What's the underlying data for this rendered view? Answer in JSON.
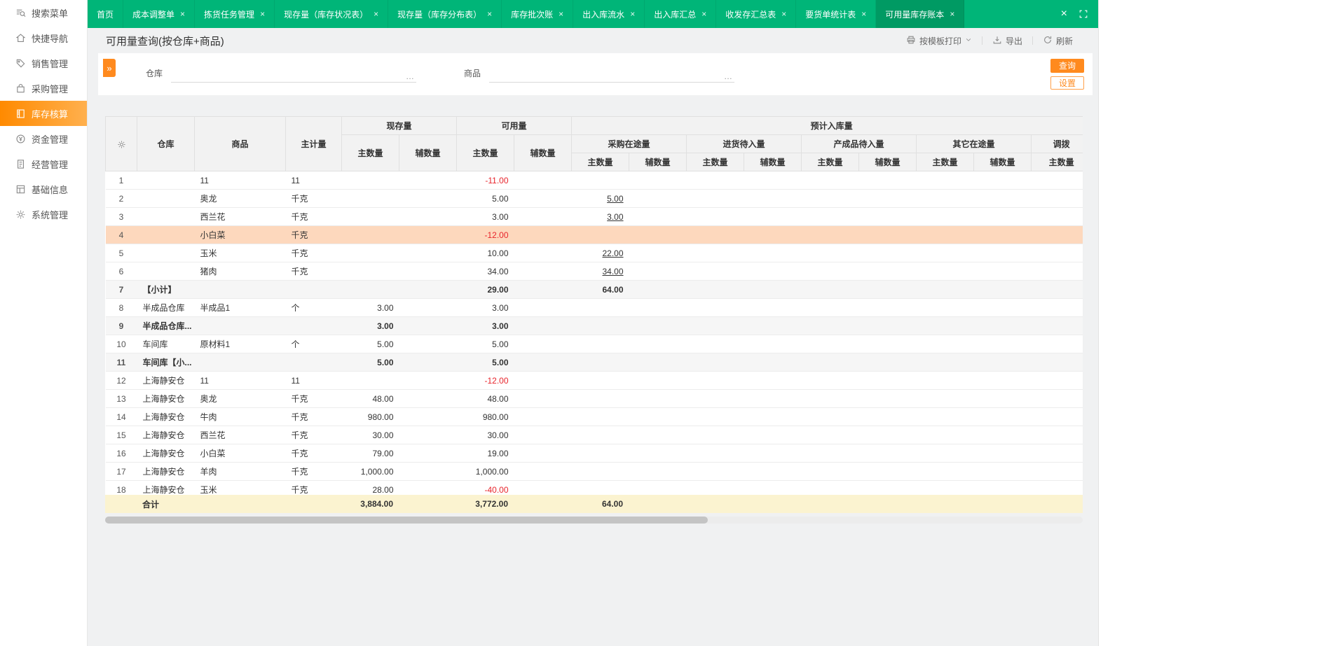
{
  "icons": {
    "close": "×",
    "window_close": "×",
    "picker": "…",
    "expand": "»"
  },
  "tabs": [
    {
      "label": "首页",
      "closable": false
    },
    {
      "label": "成本调整单",
      "closable": true
    },
    {
      "label": "拣货任务管理",
      "closable": true
    },
    {
      "label": "现存量（库存状况表）",
      "closable": true
    },
    {
      "label": "现存量（库存分布表）",
      "closable": true
    },
    {
      "label": "库存批次账",
      "closable": true
    },
    {
      "label": "出入库流水",
      "closable": true
    },
    {
      "label": "出入库汇总",
      "closable": true
    },
    {
      "label": "收发存汇总表",
      "closable": true
    },
    {
      "label": "要货单统计表",
      "closable": true
    },
    {
      "label": "可用量库存账本",
      "closable": true,
      "active": true
    }
  ],
  "sidebar": [
    {
      "label": "搜索菜单"
    },
    {
      "label": "快捷导航"
    },
    {
      "label": "销售管理"
    },
    {
      "label": "采购管理"
    },
    {
      "label": "库存核算",
      "active": true
    },
    {
      "label": "资金管理"
    },
    {
      "label": "经营管理"
    },
    {
      "label": "基础信息"
    },
    {
      "label": "系统管理"
    }
  ],
  "page": {
    "title": "可用量查询(按仓库+商品)",
    "tools": {
      "print": "按模板打印",
      "export": "导出",
      "refresh": "刷新"
    }
  },
  "filters": {
    "warehouse": {
      "label": "仓库",
      "value": ""
    },
    "goods": {
      "label": "商品",
      "value": ""
    },
    "query": "查询",
    "settings": "设置"
  },
  "grid": {
    "headers": {
      "warehouse": "仓库",
      "goods": "商品",
      "unit": "主计量",
      "onhand_group": "现存量",
      "available_group": "可用量",
      "incoming_group": "预计入库量",
      "purchase_transit": "采购在途量",
      "receipt_pending": "进货待入量",
      "finished_pending": "产成品待入量",
      "other_transit": "其它在途量",
      "transfer": "调拨",
      "main_qty": "主数量",
      "aux_qty": "辅数量"
    },
    "rows": [
      {
        "num": "1",
        "warehouse": "",
        "goods": "11",
        "unit": "11",
        "avail": "-11.00",
        "avail_negative": true
      },
      {
        "num": "2",
        "warehouse": "",
        "goods": "奥龙",
        "unit": "千克",
        "avail": "5.00",
        "purchase": "5.00",
        "purchase_drill": true
      },
      {
        "num": "3",
        "warehouse": "",
        "goods": "西兰花",
        "unit": "千克",
        "avail": "3.00",
        "purchase": "3.00",
        "purchase_drill": true
      },
      {
        "num": "4",
        "warehouse": "",
        "goods": "小白菜",
        "unit": "千克",
        "avail": "-12.00",
        "avail_negative": true,
        "type": "selected"
      },
      {
        "num": "5",
        "warehouse": "",
        "goods": "玉米",
        "unit": "千克",
        "avail": "10.00",
        "purchase": "22.00",
        "purchase_drill": true
      },
      {
        "num": "6",
        "warehouse": "",
        "goods": "猪肉",
        "unit": "千克",
        "avail": "34.00",
        "purchase": "34.00",
        "purchase_drill": true
      },
      {
        "num": "7",
        "warehouse": "【小计】",
        "avail": "29.00",
        "purchase": "64.00",
        "type": "subtotal"
      },
      {
        "num": "8",
        "warehouse": "半成品仓库",
        "goods": "半成品1",
        "unit": "个",
        "onhand": "3.00",
        "avail": "3.00"
      },
      {
        "num": "9",
        "warehouse": "半成品仓库...",
        "onhand": "3.00",
        "avail": "3.00",
        "type": "subtotal"
      },
      {
        "num": "10",
        "warehouse": "车间库",
        "goods": "原材料1",
        "unit": "个",
        "onhand": "5.00",
        "avail": "5.00"
      },
      {
        "num": "11",
        "warehouse": "车间库【小...",
        "onhand": "5.00",
        "avail": "5.00",
        "type": "subtotal"
      },
      {
        "num": "12",
        "warehouse": "上海静安仓",
        "goods": "11",
        "unit": "11",
        "avail": "-12.00",
        "avail_negative": true
      },
      {
        "num": "13",
        "warehouse": "上海静安仓",
        "goods": "奥龙",
        "unit": "千克",
        "onhand": "48.00",
        "avail": "48.00"
      },
      {
        "num": "14",
        "warehouse": "上海静安仓",
        "goods": "牛肉",
        "unit": "千克",
        "onhand": "980.00",
        "avail": "980.00"
      },
      {
        "num": "15",
        "warehouse": "上海静安仓",
        "goods": "西兰花",
        "unit": "千克",
        "onhand": "30.00",
        "avail": "30.00"
      },
      {
        "num": "16",
        "warehouse": "上海静安仓",
        "goods": "小白菜",
        "unit": "千克",
        "onhand": "79.00",
        "avail": "19.00"
      },
      {
        "num": "17",
        "warehouse": "上海静安仓",
        "goods": "羊肉",
        "unit": "千克",
        "onhand": "1,000.00",
        "avail": "1,000.00"
      },
      {
        "num": "18",
        "warehouse": "上海静安仓",
        "goods": "玉米",
        "unit": "千克",
        "onhand": "28.00",
        "avail": "-40.00",
        "avail_negative": true
      }
    ],
    "total": {
      "label": "合计",
      "onhand": "3,884.00",
      "available": "3,772.00",
      "purchase": "64.00"
    }
  }
}
